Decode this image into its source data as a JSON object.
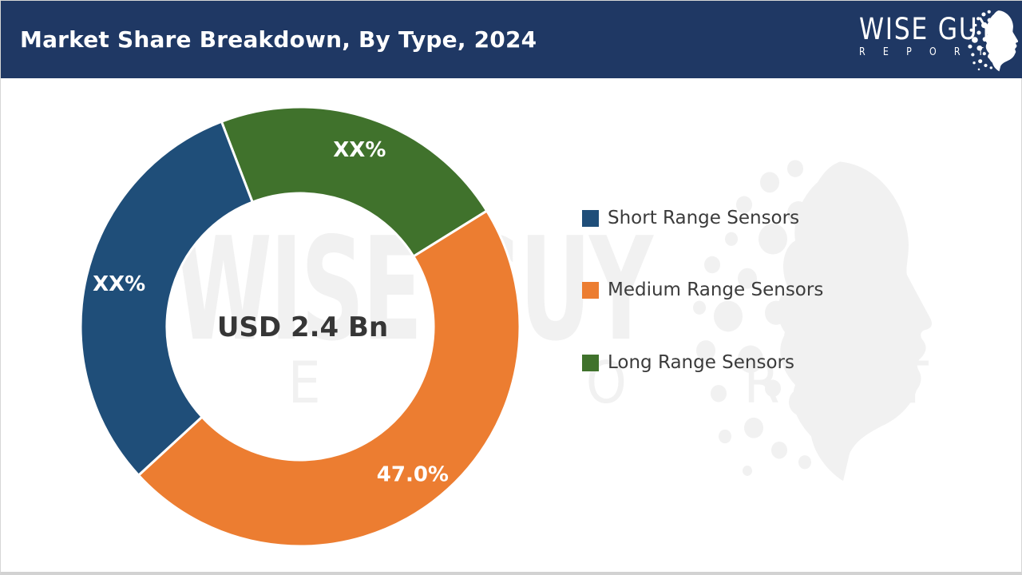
{
  "header": {
    "title": "Market Share Breakdown, By Type, 2024",
    "logo": {
      "name": "WISE GUY",
      "tagline": "R E P O R T S"
    }
  },
  "watermark": {
    "line1": "WISE GUY",
    "line2": "R E P O R T S"
  },
  "chart_data": {
    "type": "pie",
    "subtype": "donut",
    "title": "Market Share Breakdown, By Type, 2024",
    "center_label": "USD 2.4 Bn",
    "start_angle_deg": -21,
    "legend_position": "right",
    "slices": [
      {
        "label": "Long Range Sensors",
        "value": 22,
        "display": "XX%",
        "color": "#40722c"
      },
      {
        "label": "Medium Range Sensors",
        "value": 47,
        "display": "47.0%",
        "color": "#ec7d31"
      },
      {
        "label": "Short Range Sensors",
        "value": 31,
        "display": "XX%",
        "color": "#1f4e79"
      }
    ]
  },
  "legend": {
    "items": [
      {
        "label": "Short Range Sensors",
        "color": "#1f4e79"
      },
      {
        "label": "Medium Range Sensors",
        "color": "#ec7d31"
      },
      {
        "label": "Long Range Sensors",
        "color": "#40722c"
      }
    ]
  },
  "colors": {
    "header_bg": "#1f3864",
    "slice_gap": "#ffffff",
    "center_text": "#363636",
    "legend_text": "#3b3b3b",
    "watermark": "#f1f1f1"
  }
}
